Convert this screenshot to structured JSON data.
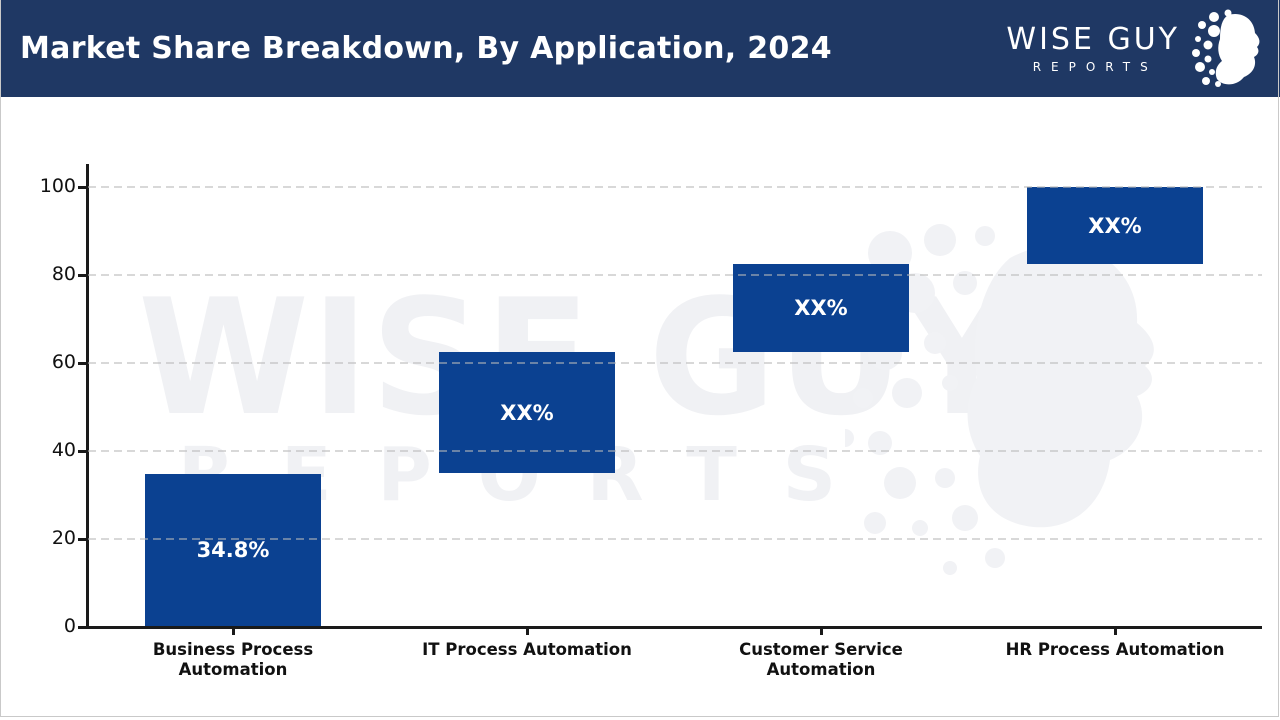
{
  "header": {
    "title": "Market Share Breakdown, By Application, 2024",
    "bg_color": "#1f3864",
    "logo": {
      "line1": "WISE GUY",
      "line2": "REPORTS"
    }
  },
  "watermark": {
    "line1": "WISE GUY",
    "line2": "REPORTS"
  },
  "chart_data": {
    "type": "bar",
    "subtype": "waterfall",
    "title": "Market Share Breakdown, By Application, 2024",
    "categories": [
      "Business Process Automation",
      "IT Process Automation",
      "Customer Service Automation",
      "HR Process Automation"
    ],
    "bars": [
      {
        "category": "Business Process Automation",
        "start": 0,
        "end": 34.8,
        "label": "34.8%"
      },
      {
        "category": "IT Process Automation",
        "start": 35,
        "end": 62.5,
        "label": "XX%"
      },
      {
        "category": "Customer Service Automation",
        "start": 62.5,
        "end": 82.5,
        "label": "XX%"
      },
      {
        "category": "HR Process Automation",
        "start": 82.5,
        "end": 100,
        "label": "XX%"
      }
    ],
    "yticks": [
      0,
      20,
      40,
      60,
      80,
      100
    ],
    "ylim": [
      0,
      105
    ],
    "xlabel": "",
    "ylabel": "",
    "grid": "horizontal-dashed",
    "legend": "none",
    "bar_color": "#0b4191",
    "bar_label_color": "#ffffff",
    "axis_color": "#1a1a1a",
    "grid_color": "#d9d9d9"
  }
}
